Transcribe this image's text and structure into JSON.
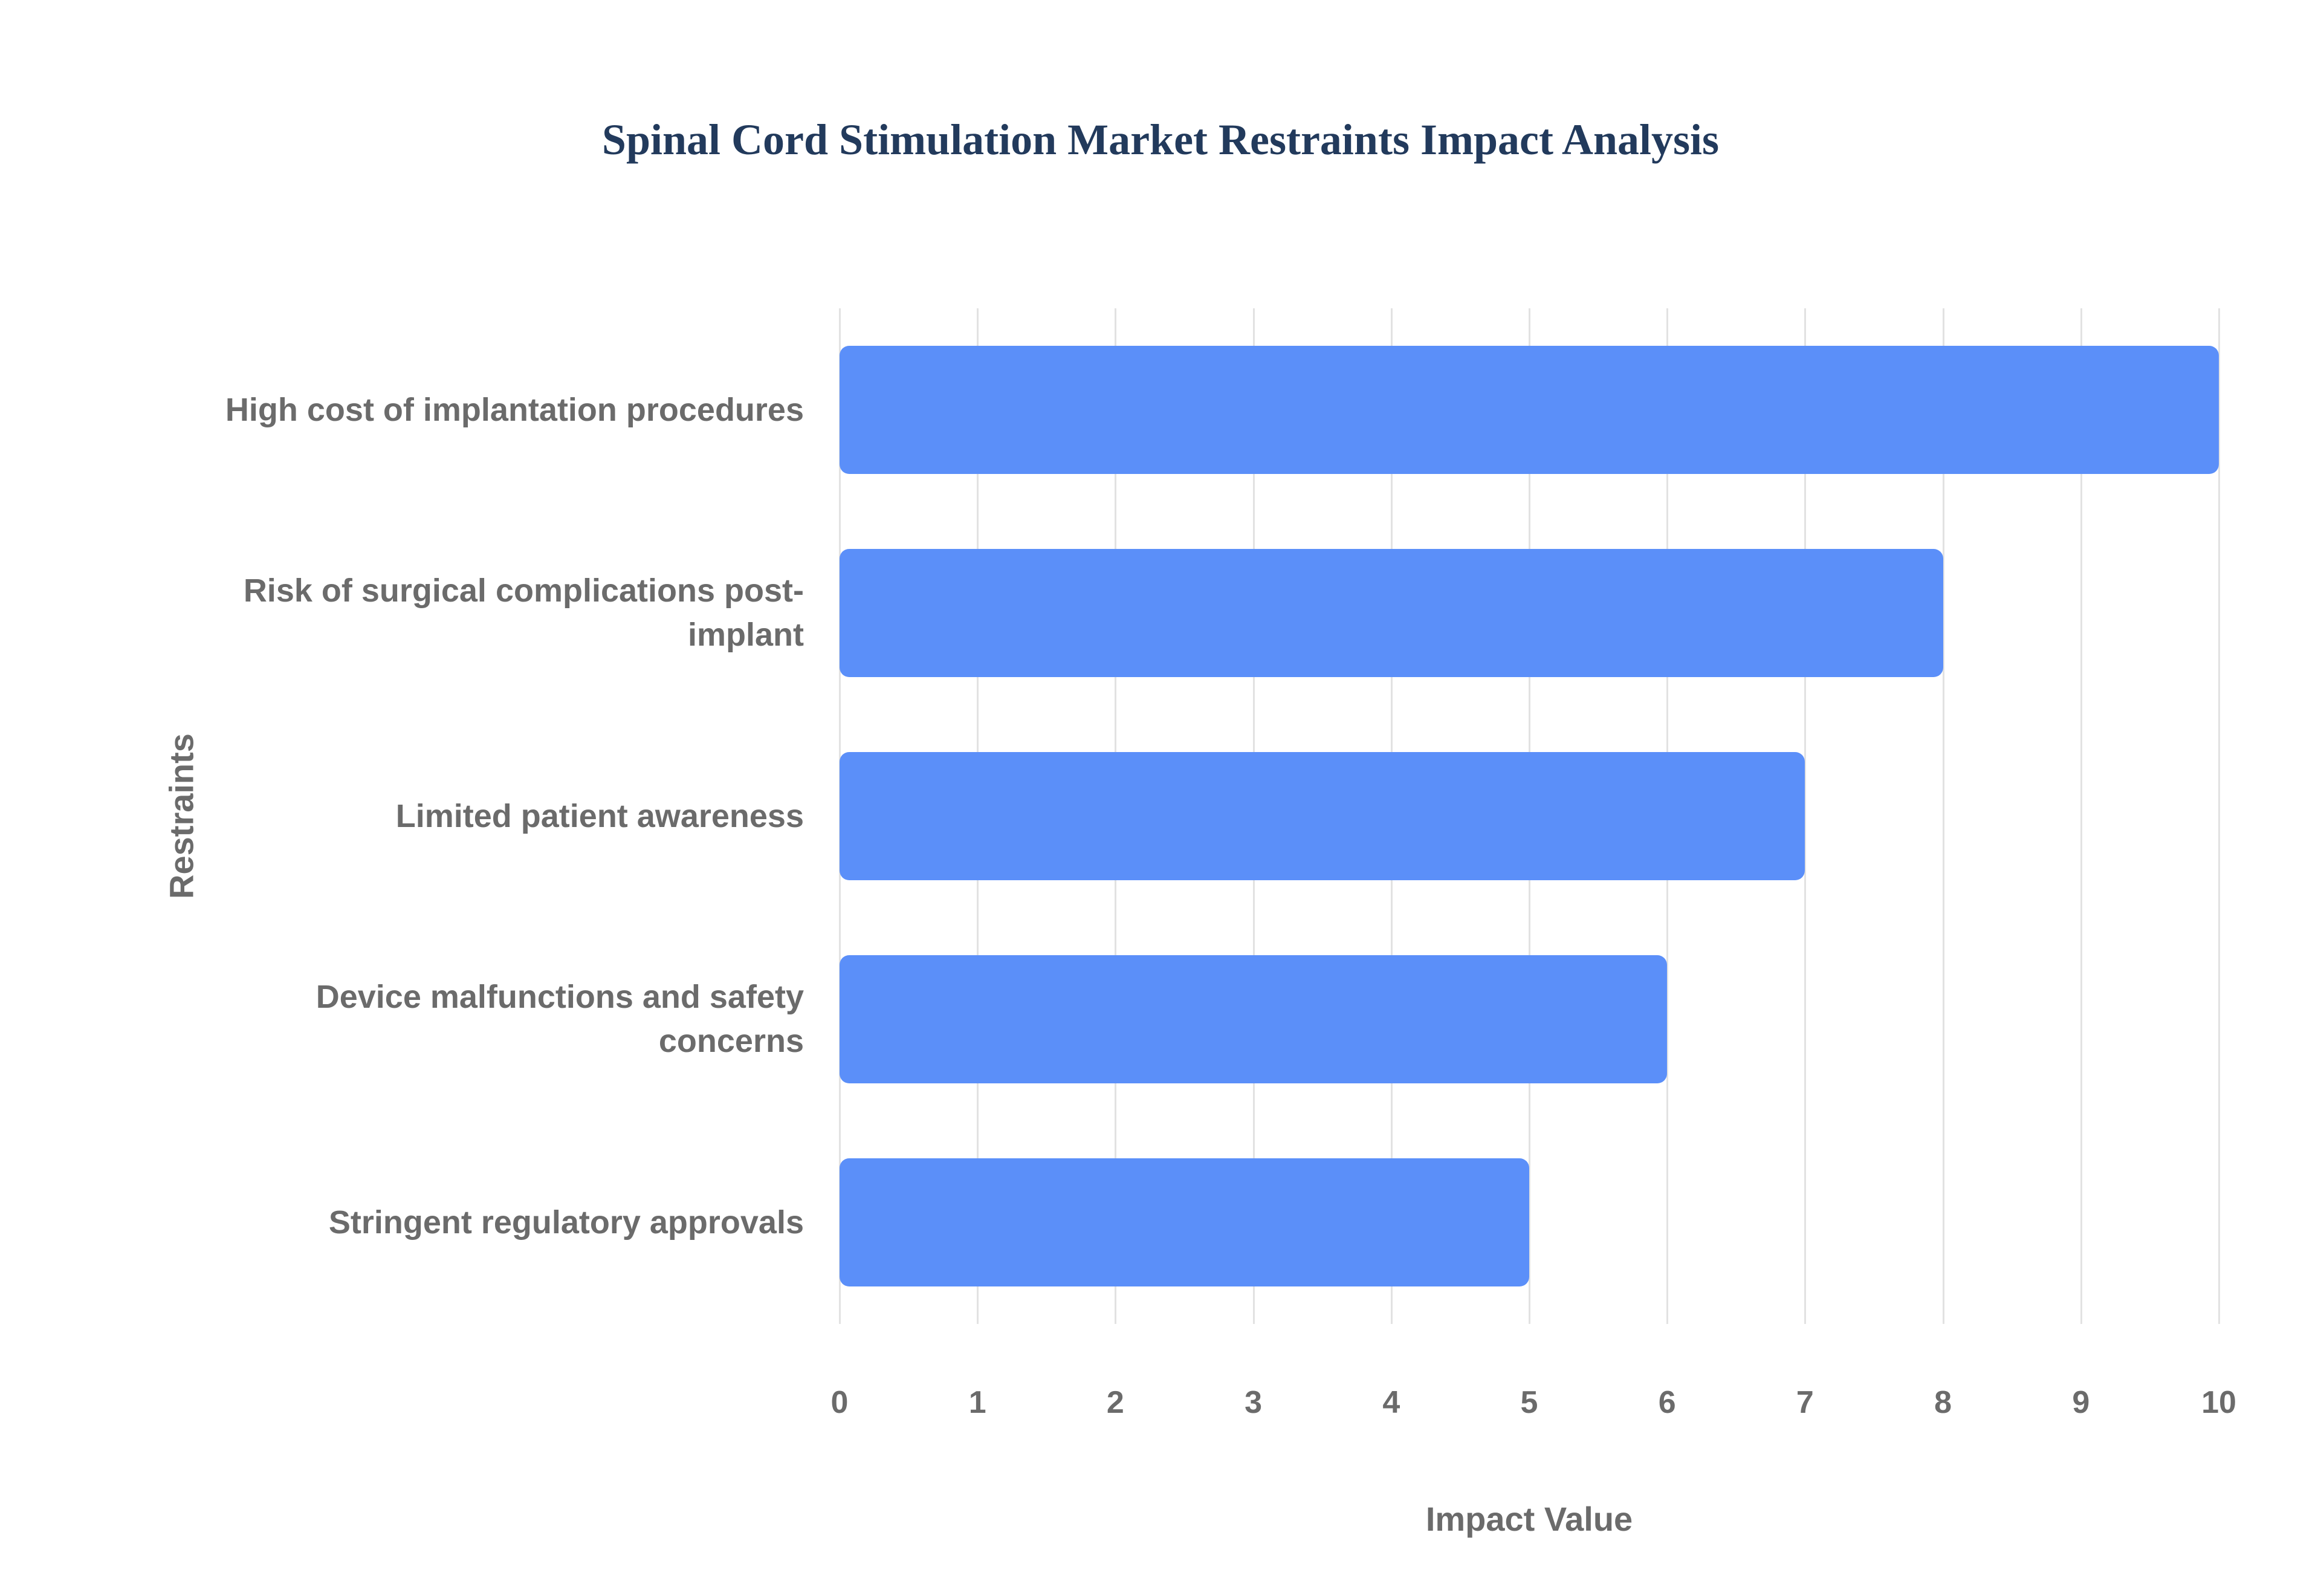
{
  "chart_data": {
    "type": "bar",
    "orientation": "horizontal",
    "title": "Spinal Cord Stimulation Market Restraints Impact Analysis",
    "xlabel": "Impact Value",
    "ylabel": "Restraints",
    "categories": [
      "High cost of implantation procedures",
      "Risk of surgical complications post-implant",
      "Limited patient awareness",
      "Device malfunctions and safety concerns",
      "Stringent regulatory approvals"
    ],
    "values": [
      10,
      8,
      7,
      6,
      5
    ],
    "xlim": [
      0,
      10
    ],
    "xticks": [
      0,
      1,
      2,
      3,
      4,
      5,
      6,
      7,
      8,
      9,
      10
    ],
    "grid": true,
    "legend": false
  },
  "colors": {
    "title": "#223a5c",
    "axis_text": "#6b6b6b",
    "gridline": "#e2e2e2",
    "bar": "#5b8ff9",
    "background": "#ffffff"
  }
}
